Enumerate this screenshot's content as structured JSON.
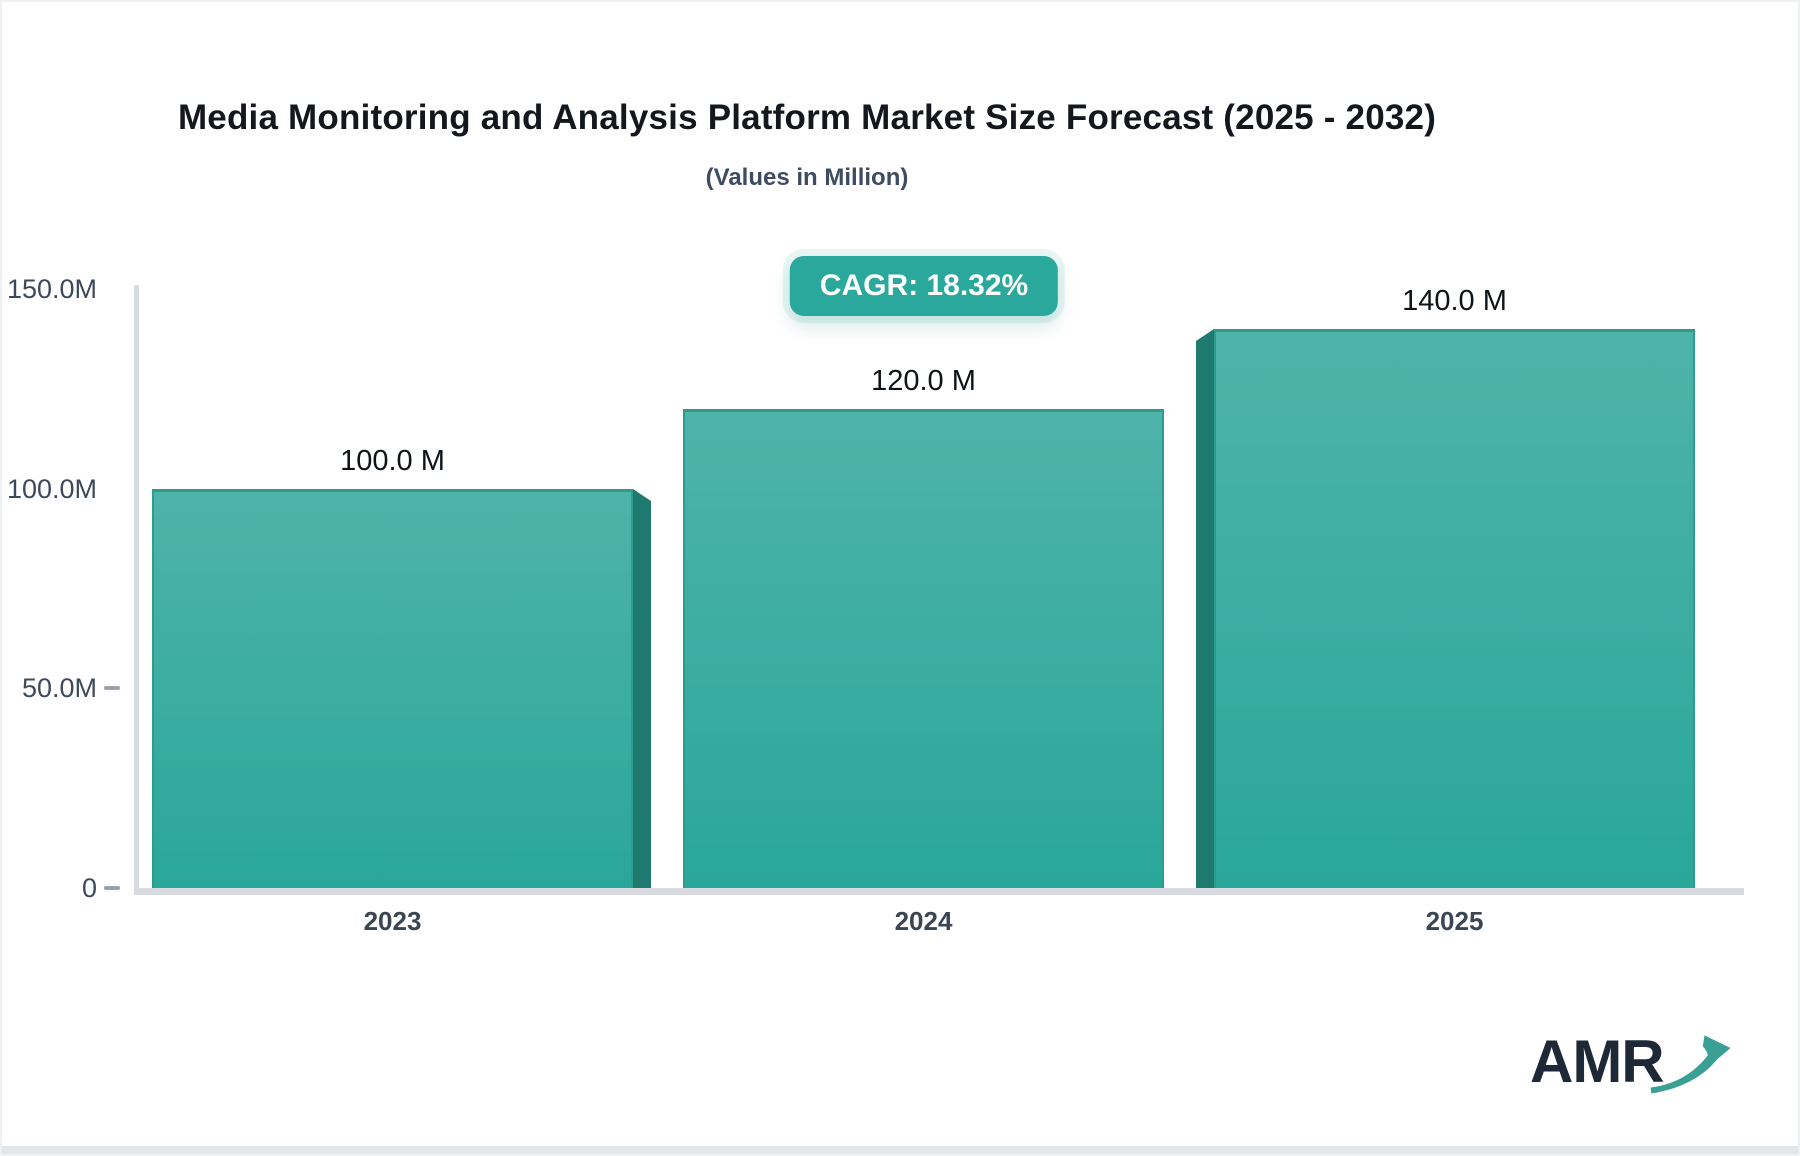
{
  "header": {
    "title": "Media Monitoring and Analysis Platform Market Size Forecast (2025 - 2032)",
    "subtitle": "(Values in Million)",
    "cagr_label": "CAGR: 18.32%"
  },
  "chart_data": {
    "type": "bar",
    "categories": [
      "2023",
      "2024",
      "2025"
    ],
    "values": [
      100,
      120,
      140
    ],
    "bar_labels": [
      "100.0 M",
      "120.0 M",
      "140.0 M"
    ],
    "title": "Media Monitoring and Analysis Platform Market Size Forecast (2025 - 2032)",
    "subtitle": "(Values in Million)",
    "xlabel": "",
    "ylabel": "",
    "ylim": [
      0,
      150
    ],
    "grid": false,
    "legend": "none",
    "y_ticks": [
      {
        "label": "150.0M",
        "value": 150,
        "dash": false
      },
      {
        "label": "100.0M",
        "value": 100,
        "dash": false
      },
      {
        "label": "50.0M",
        "value": 50,
        "dash": true
      },
      {
        "label": "0",
        "value": 0,
        "dash": true
      }
    ],
    "bar_3d_sides": [
      "right",
      "none",
      "left"
    ]
  },
  "logo": {
    "text": "AMR"
  },
  "colors": {
    "bar-gradient-top": "#4fb3aa",
    "bar-gradient-bottom": "#29a799",
    "bar-side": "#1e7a6e",
    "bar-top-edge": "#2e9a8e",
    "bar-edge": "#2d9c90",
    "badge-bg": "#2aa89b",
    "axis-line": "#d7dae0",
    "tick-color": "#98a1ac",
    "y-label-color": "#3d4a5b",
    "x-label-color": "#3b4654",
    "value-label-color": "#0e1318",
    "title-color": "#14181e",
    "subtitle-color": "#3e4c62",
    "logo-text": "#1d2936",
    "logo-arrow": "#3a9f95",
    "bottom-strip": "#e2e5ea"
  }
}
